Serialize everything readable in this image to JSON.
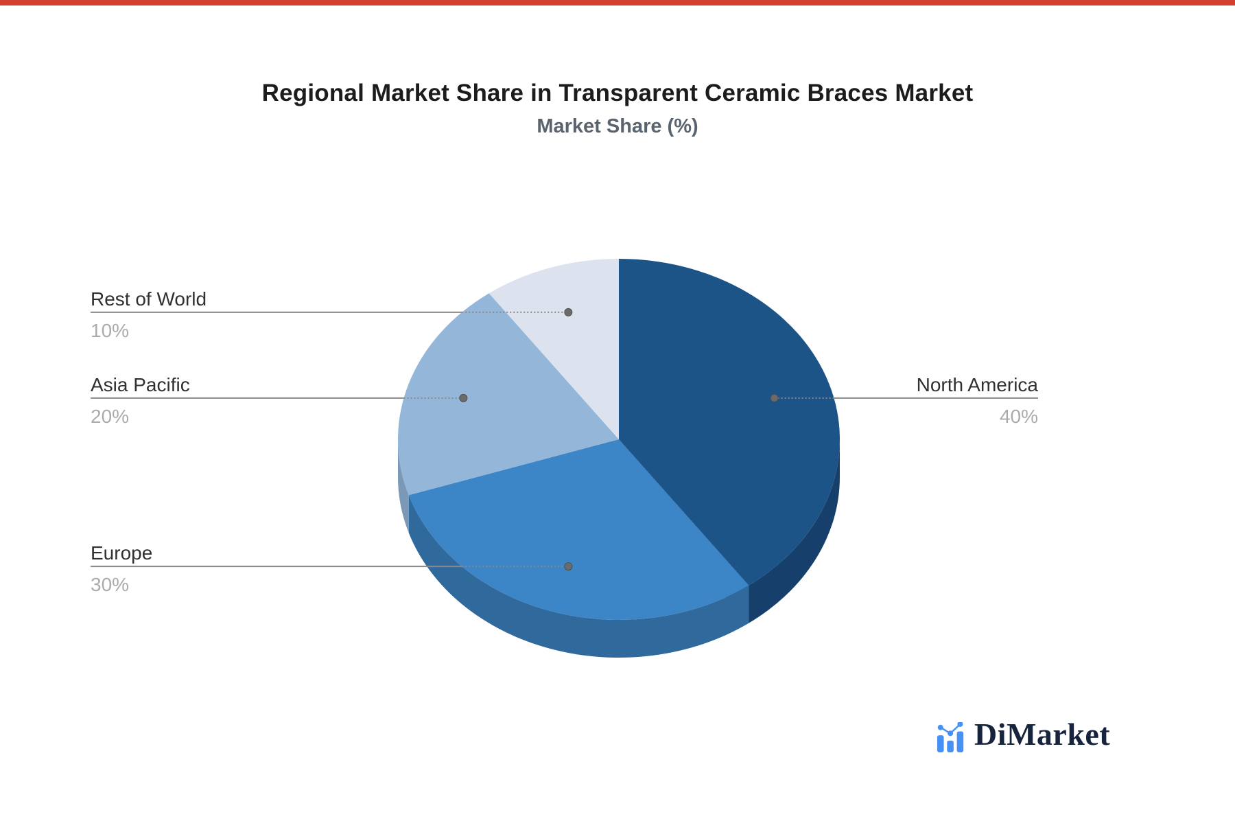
{
  "page": {
    "top_bar_color": "#d23f31",
    "background": "#ffffff"
  },
  "chart_data": {
    "type": "pie",
    "style": "3d",
    "title": "Regional Market Share in Transparent Ceramic Braces Market",
    "subtitle": "Market Share (%)",
    "unit": "%",
    "direction": "clockwise",
    "start_angle_deg": 0,
    "legend_position": "none",
    "slices": [
      {
        "label": "North America",
        "value": 40,
        "pct_label": "40%",
        "color": "#1d5488",
        "side_color": "#16406b",
        "face_color": "#174569"
      },
      {
        "label": "Europe",
        "value": 30,
        "pct_label": "30%",
        "color": "#3c86c8",
        "side_color": "#30699c",
        "face_color": "#2d639a"
      },
      {
        "label": "Asia Pacific",
        "value": 20,
        "pct_label": "20%",
        "color": "#93b6d9",
        "side_color": "#7b98b6",
        "face_color": "#7b98b6"
      },
      {
        "label": "Rest of World",
        "value": 10,
        "pct_label": "10%",
        "color": "#dde3ee",
        "side_color": "#c3cfdf",
        "face_color": "#c3cfdf"
      }
    ],
    "label_color": "#303030",
    "pct_color": "#ababab",
    "leader_line_color": "#8a8a8a",
    "leader_dot_color": "#6b6b6b"
  },
  "logo": {
    "text": "DiMarket",
    "icon": "bar-line-chart-icon",
    "icon_color": "#4591f5",
    "text_color": "#16243d"
  }
}
